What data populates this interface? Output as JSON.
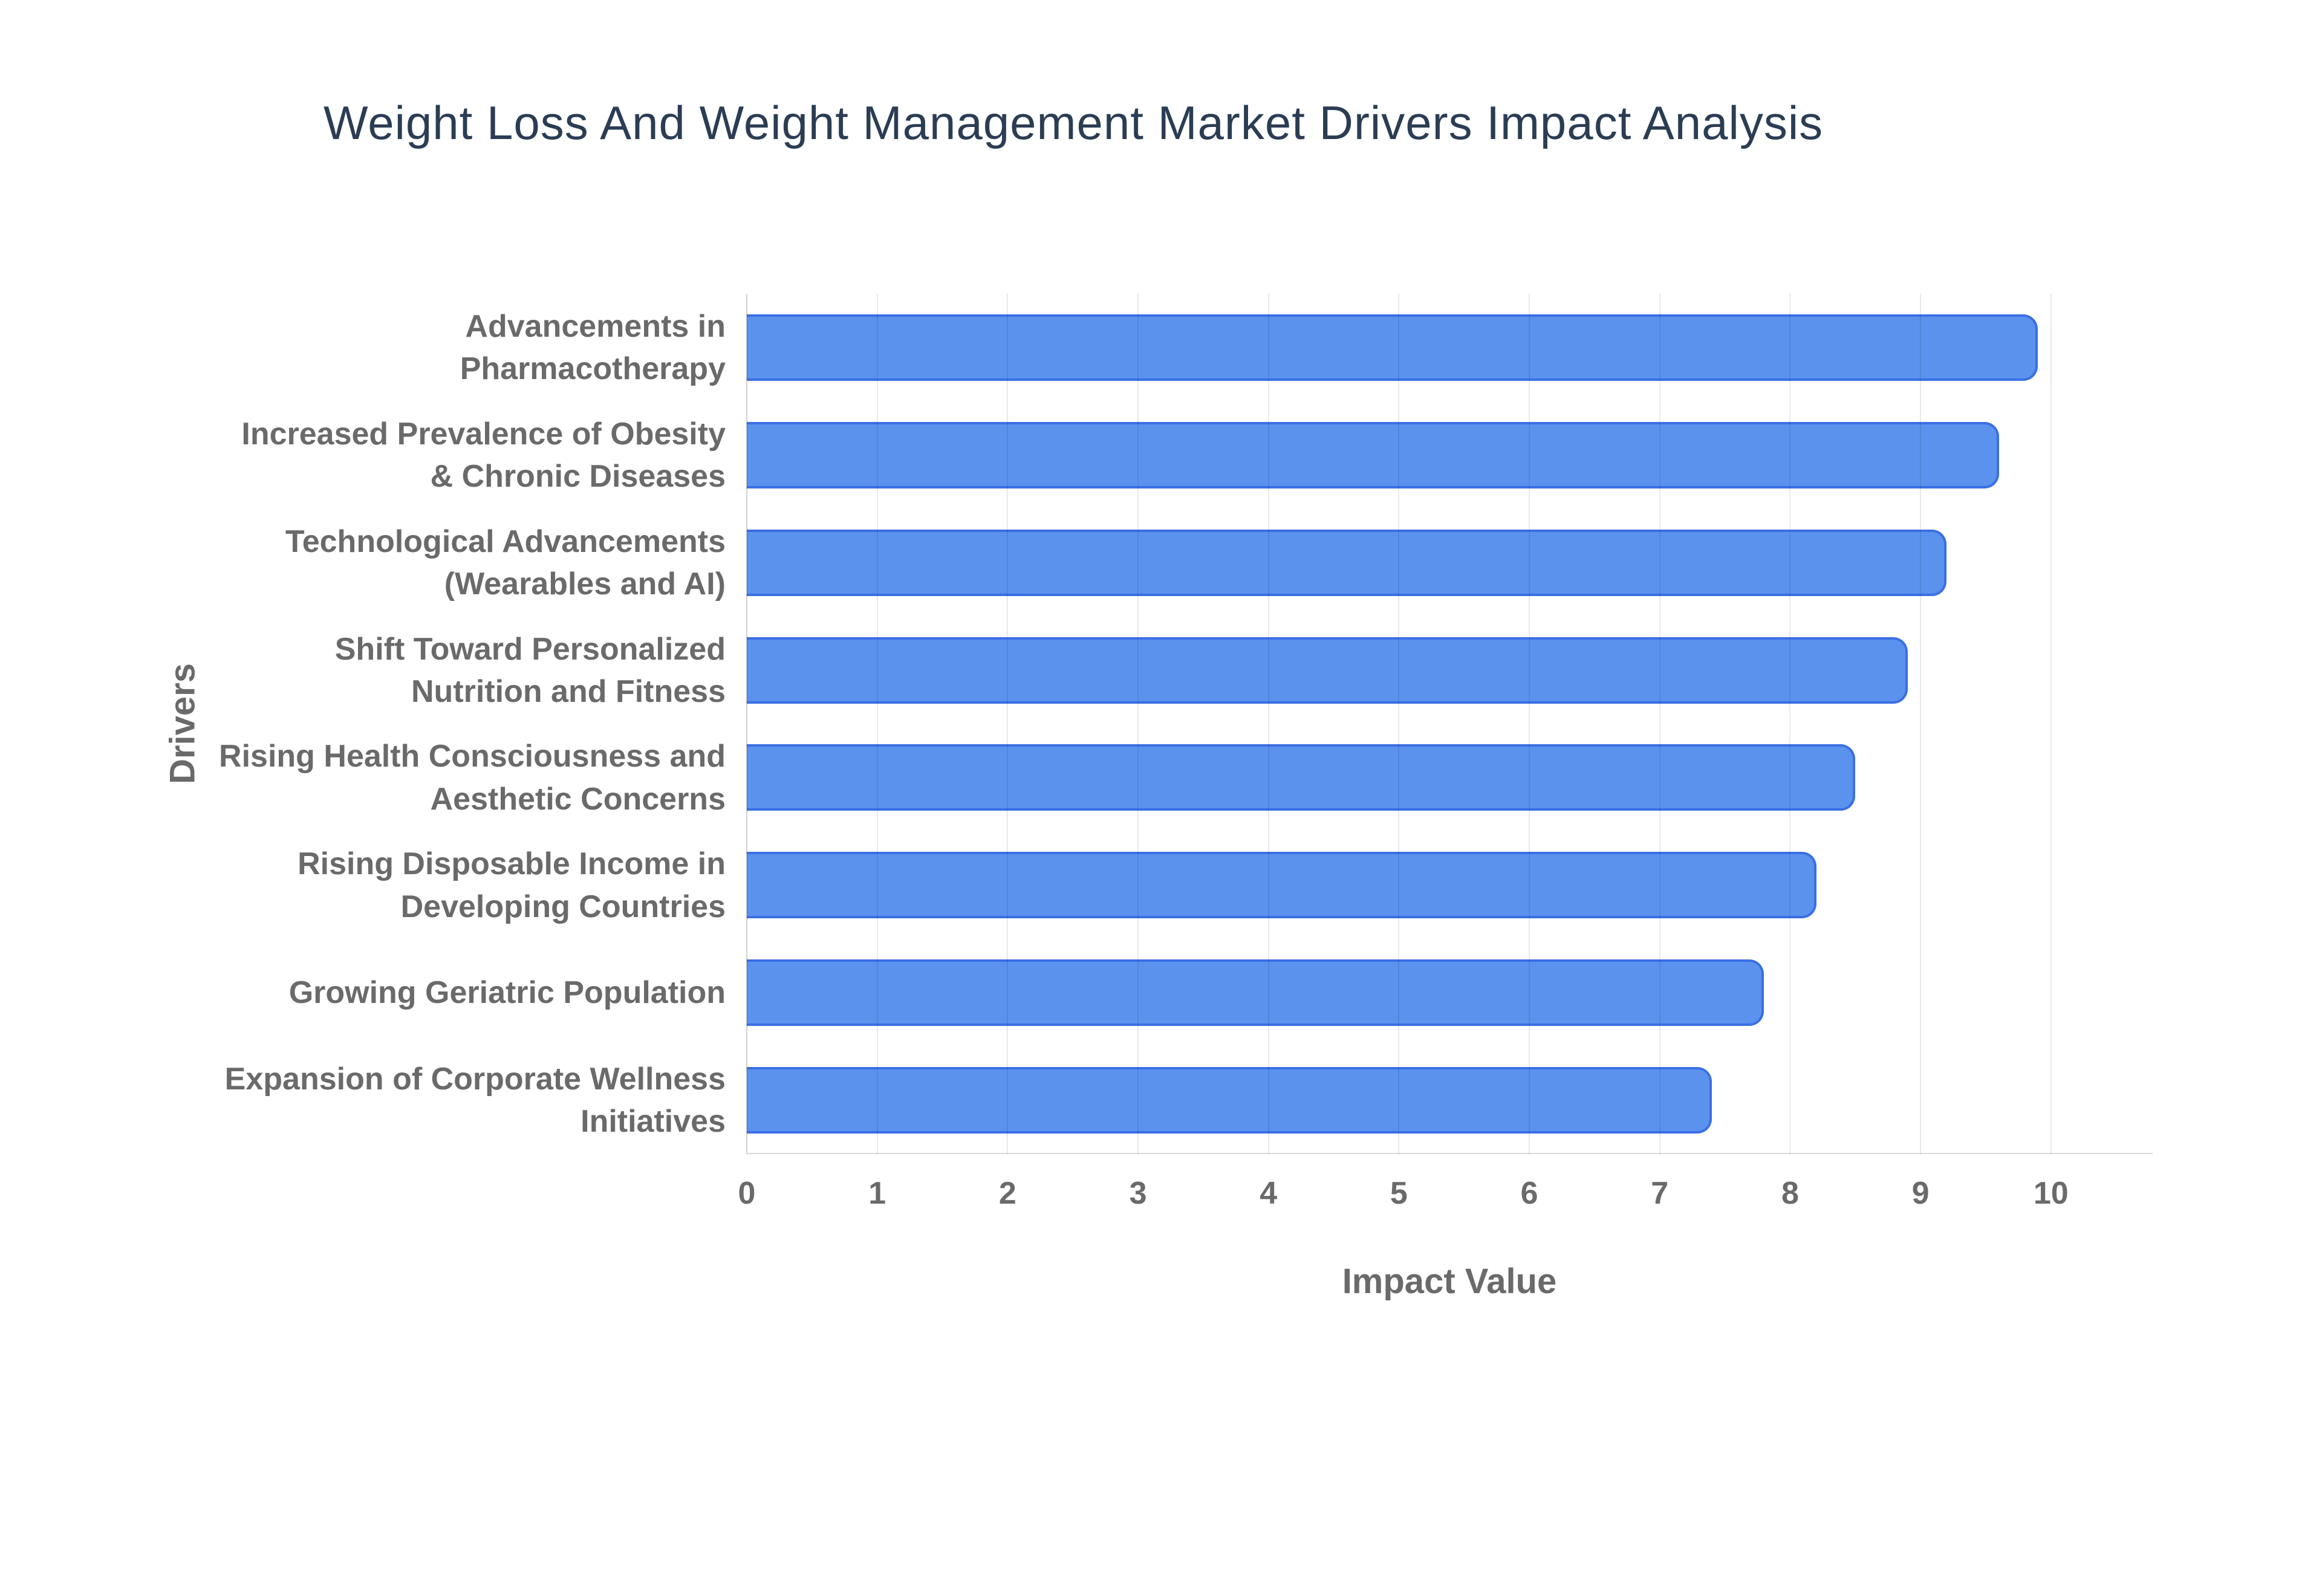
{
  "page": {
    "background": "#ffffff"
  },
  "chart_data": {
    "type": "bar",
    "orientation": "horizontal",
    "title": "Weight Loss And Weight Management Market Drivers Impact Analysis",
    "xlabel": "Impact Value",
    "ylabel": "Drivers",
    "categories": [
      "Advancements in Pharmacotherapy",
      "Increased Prevalence of Obesity & Chronic Diseases",
      "Technological Advancements (Wearables and AI)",
      "Shift Toward Personalized Nutrition and Fitness",
      "Rising Health Consciousness and Aesthetic Concerns",
      "Rising Disposable Income in Developing Countries",
      "Growing Geriatric Population",
      "Expansion of Corporate Wellness Initiatives"
    ],
    "values": [
      9.9,
      9.6,
      9.2,
      8.9,
      8.5,
      8.2,
      7.8,
      7.4
    ],
    "xticks": [
      0,
      1,
      2,
      3,
      4,
      5,
      6,
      7,
      8,
      9,
      10
    ],
    "xlim": [
      0,
      10.78
    ],
    "grid": true,
    "legend": false,
    "colors": {
      "bar_fill": "#5B92EE",
      "bar_border": "#3A6FE4",
      "title_text": "#2B3D54",
      "axis_text": "#6A6A6A"
    }
  }
}
